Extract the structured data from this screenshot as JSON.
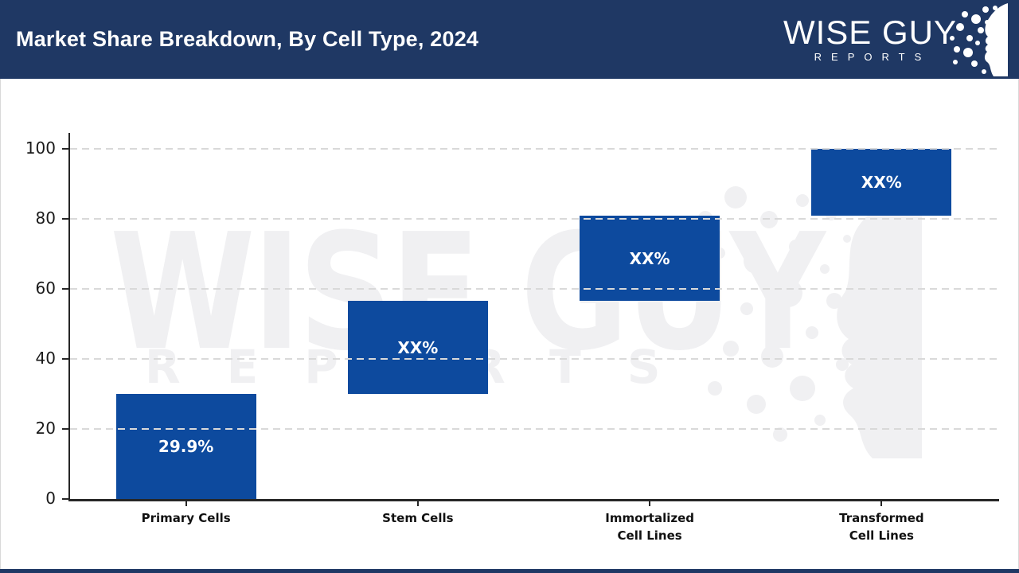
{
  "header": {
    "title": "Market Share Breakdown, By Cell Type, 2024",
    "logo": {
      "line1": "WISE GUY",
      "line2": "REPORTS"
    }
  },
  "watermark": {
    "line1": "WISE GUY",
    "line2": "REPORTS"
  },
  "chart_data": {
    "type": "bar",
    "subtype": "waterfall",
    "title": "Market Share Breakdown, By Cell Type, 2024",
    "categories": [
      "Primary Cells",
      "Stem Cells",
      "Immortalized Cell Lines",
      "Transformed Cell Lines"
    ],
    "segments": [
      {
        "category": "Primary Cells",
        "start": 0,
        "end": 29.9,
        "label": "29.9%"
      },
      {
        "category": "Stem Cells",
        "start": 30,
        "end": 56.5,
        "label": "XX%"
      },
      {
        "category": "Immortalized Cell Lines",
        "start": 56.5,
        "end": 80.8,
        "label": "XX%"
      },
      {
        "category": "Transformed Cell Lines",
        "start": 80.8,
        "end": 100,
        "label": "XX%"
      }
    ],
    "yticks": [
      0,
      20,
      40,
      60,
      80,
      100
    ],
    "ylim": [
      0,
      104
    ],
    "xlabel": "",
    "ylabel": "",
    "grid": "horizontal-dashed",
    "legend": "none",
    "bar_color": "#0d4a9e"
  },
  "colors": {
    "header_bg": "#1f3864",
    "bar": "#0d4a9e",
    "grid": "#d9d9d9",
    "axis": "#262626",
    "watermark": "#f0f0f2",
    "bar_label": "#ffffff",
    "tick_label": "#1a1a1a"
  }
}
